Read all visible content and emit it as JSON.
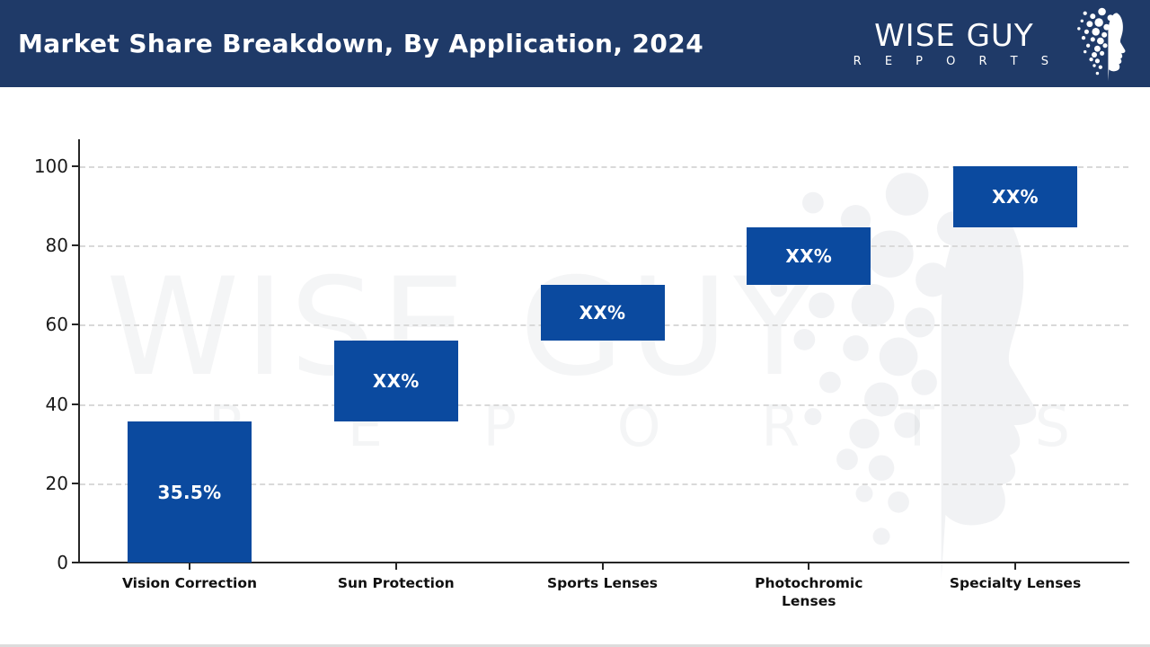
{
  "header": {
    "title": "Market Share Breakdown, By Application, 2024",
    "bg_color": "#1F3A68",
    "brand": {
      "line1": "WISE GUY",
      "line2": "R E P O R T S"
    }
  },
  "watermark": {
    "line1": "WISE GUY",
    "line2": "R E P O R T S"
  },
  "chart_data": {
    "type": "bar",
    "subtype": "floating-waterfall",
    "title": "Market Share Breakdown, By Application, 2024",
    "categories": [
      "Vision Correction",
      "Sun Protection",
      "Sports Lenses",
      "Photochromic Lenses",
      "Specialty Lenses"
    ],
    "tick_labels": [
      "Vision Correction",
      "Sun Protection",
      "Sports Lenses",
      "Photochromic\nLenses",
      "Specialty Lenses"
    ],
    "series": [
      {
        "name": "Market Share (%)",
        "segments": [
          {
            "category": "Vision Correction",
            "start": 0,
            "end": 35.5,
            "label": "35.5%"
          },
          {
            "category": "Sun Protection",
            "start": 35.5,
            "end": 56,
            "label": "XX%"
          },
          {
            "category": "Sports Lenses",
            "start": 56,
            "end": 70,
            "label": "XX%"
          },
          {
            "category": "Photochromic Lenses",
            "start": 70,
            "end": 84.5,
            "label": "XX%"
          },
          {
            "category": "Specialty Lenses",
            "start": 84.5,
            "end": 100,
            "label": "XX%"
          }
        ]
      }
    ],
    "xlabel": "",
    "ylabel": "",
    "ylim": [
      0,
      100
    ],
    "yticks": [
      0,
      20,
      40,
      60,
      80,
      100
    ],
    "grid": "horizontal-dashed",
    "legend": "none",
    "bar_color": "#0B4A9F",
    "bar_value_label_color": "#FFFFFF",
    "axis_color": "#262626",
    "gridline_color": "#D9D9D9"
  }
}
